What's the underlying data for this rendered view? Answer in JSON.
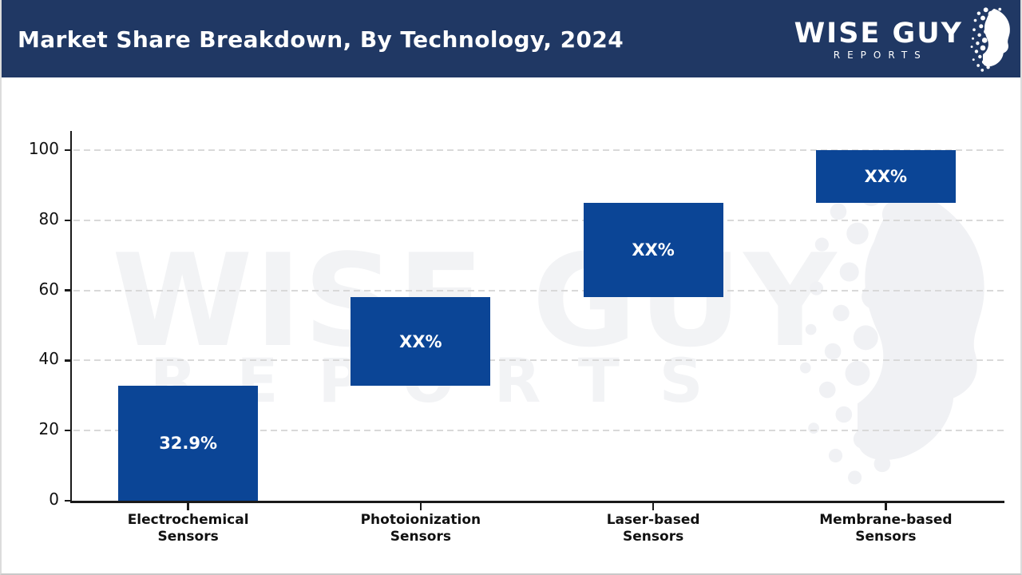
{
  "header": {
    "title": "Market Share Breakdown, By Technology, 2024",
    "logo": {
      "wordmark": "WISE GUY",
      "subtitle": "REPORTS"
    }
  },
  "watermark": {
    "wordmark": "WISE GUY",
    "subtitle": "REPORTS"
  },
  "colors": {
    "header_bg": "#203864",
    "bar_blue": "#0b4596",
    "watermark_gray": "#f2f3f5",
    "gridline_gray": "#d9d9d9",
    "axis_black": "#1a1a1a"
  },
  "chart_data": {
    "type": "bar",
    "subtype": "waterfall",
    "title": "Market Share Breakdown, By Technology, 2024",
    "categories": [
      {
        "line1": "Electrochemical",
        "line2": "Sensors"
      },
      {
        "line1": "Photoionization",
        "line2": "Sensors"
      },
      {
        "line1": "Laser-based",
        "line2": "Sensors"
      },
      {
        "line1": "Membrane-based",
        "line2": "Sensors"
      }
    ],
    "segments": [
      {
        "label": "32.9%",
        "start": 0,
        "end": 32.9,
        "value": 32.9
      },
      {
        "label": "XX%",
        "start": 32.9,
        "end": 58.0,
        "value": 25.1
      },
      {
        "label": "XX%",
        "start": 58.0,
        "end": 85.0,
        "value": 27.0
      },
      {
        "label": "XX%",
        "start": 85.0,
        "end": 100.0,
        "value": 15.0
      }
    ],
    "yticks": [
      0,
      20,
      40,
      60,
      80,
      100
    ],
    "ylim": [
      0,
      105.5
    ],
    "xlabel": "",
    "ylabel": "",
    "grid": true,
    "legend": false,
    "bar_color": "#0b4596",
    "bar_label_color": "#ffffff"
  }
}
